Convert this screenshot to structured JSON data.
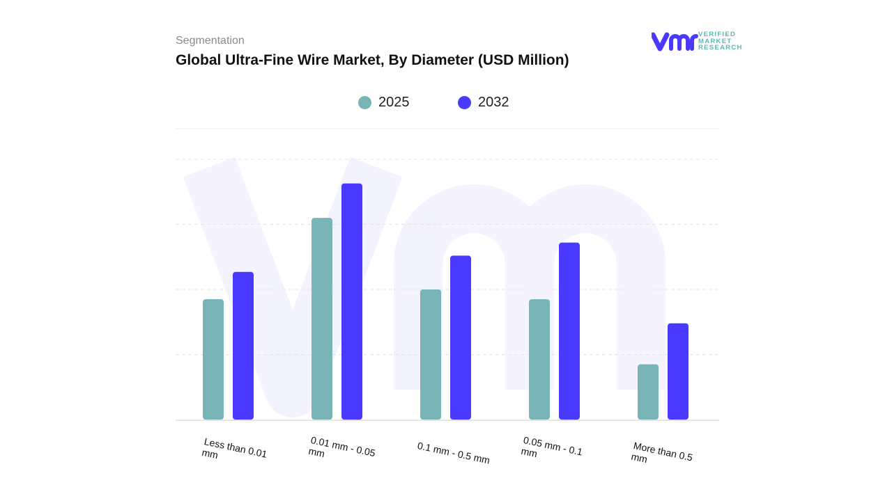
{
  "header": {
    "subtitle": "Segmentation",
    "title": "Global Ultra-Fine Wire Market, By Diameter (USD Million)"
  },
  "logo": {
    "text_lines": [
      "VERIFIED",
      "MARKET",
      "RESEARCH"
    ]
  },
  "chart_data": {
    "type": "bar",
    "title": "Global Ultra-Fine Wire Market, By Diameter (USD Million)",
    "categories": [
      "Less than 0.01 mm",
      "0.01 mm - 0.05 mm",
      "0.1 mm - 0.5 mm",
      "0.05 mm - 0.1 mm",
      "More than 0.5 mm"
    ],
    "series": [
      {
        "name": "2025",
        "color": "#79b4b7",
        "values": [
          1.85,
          3.1,
          2.0,
          1.85,
          0.85
        ]
      },
      {
        "name": "2032",
        "color": "#4a3aff",
        "values": [
          2.27,
          3.63,
          2.52,
          2.72,
          1.48
        ]
      }
    ],
    "ylim": [
      0,
      4
    ],
    "y_tick_labels_shown": false,
    "grid": true,
    "legend_placement": "top-center",
    "xlabel": "",
    "ylabel": ""
  }
}
